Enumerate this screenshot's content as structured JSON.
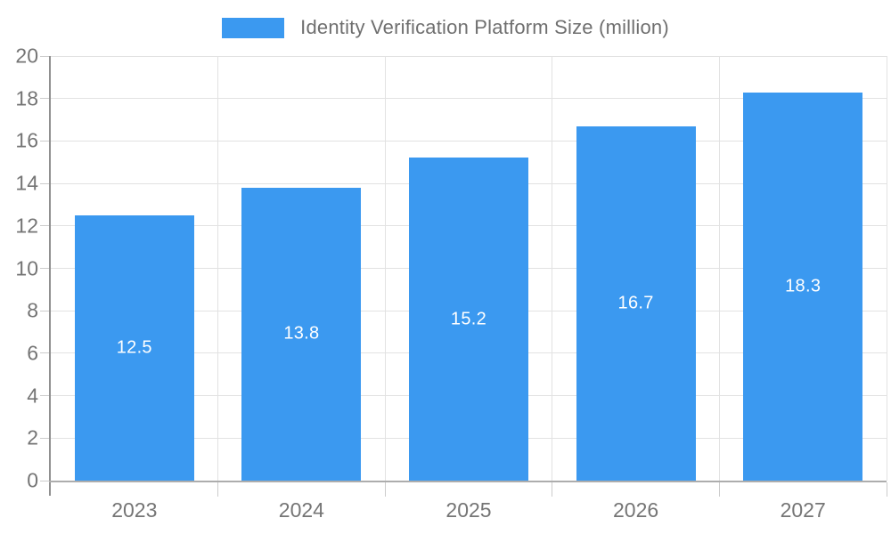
{
  "legend": {
    "label": "Identity Verification Platform Size (million)"
  },
  "chart_data": {
    "type": "bar",
    "title": "Identity Verification Platform Size (million)",
    "categories": [
      "2023",
      "2024",
      "2025",
      "2026",
      "2027"
    ],
    "values": [
      12.5,
      13.8,
      15.2,
      16.7,
      18.3
    ],
    "value_labels": [
      "12.5",
      "13.8",
      "15.2",
      "16.7",
      "18.3"
    ],
    "series": [
      {
        "name": "Identity Verification Platform Size (million)",
        "values": [
          12.5,
          13.8,
          15.2,
          16.7,
          18.3
        ]
      }
    ],
    "xlabel": "",
    "ylabel": "",
    "ylim": [
      0,
      20
    ],
    "yticks": [
      0,
      2,
      4,
      6,
      8,
      10,
      12,
      14,
      16,
      18,
      20
    ],
    "grid": true,
    "legend_position": "top-center",
    "value_label_position": "inside-center"
  },
  "colors": {
    "bar_fill": "#3B99F0",
    "value_label": "#FFFFFF",
    "axis_text": "#757575",
    "legend_text": "#6F6F6F",
    "gridline": "#E2E2E2",
    "axis_line": "#909090",
    "baseline": "#ADADAD",
    "tick": "#CCCCCC",
    "background": "#FFFFFF"
  }
}
